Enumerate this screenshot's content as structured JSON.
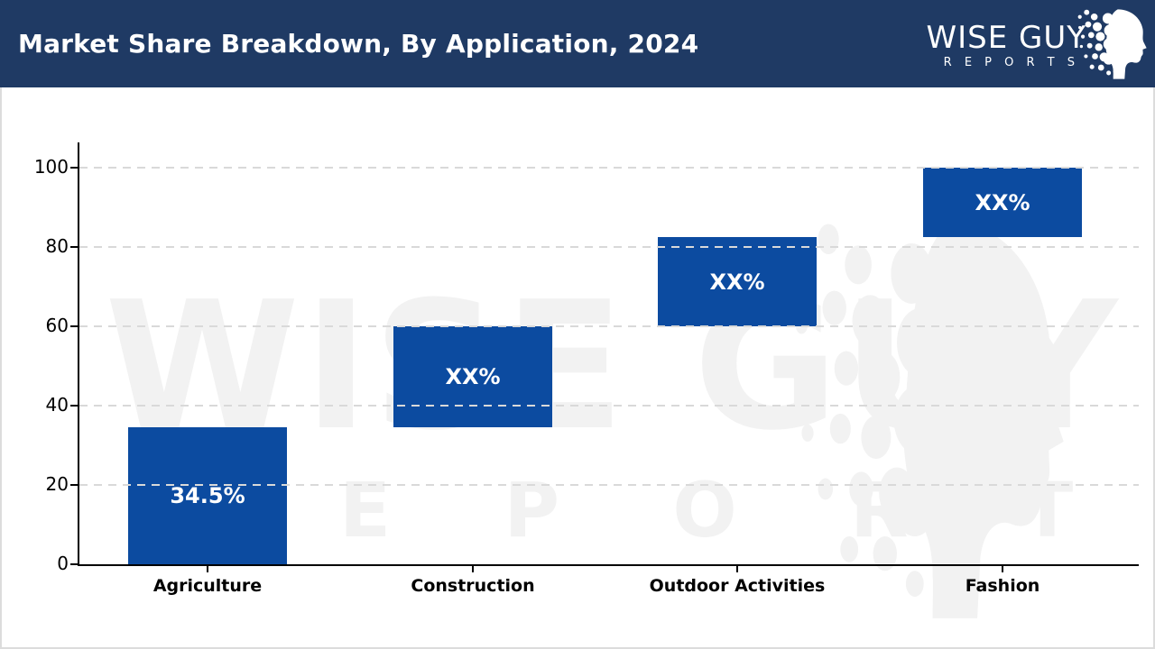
{
  "header": {
    "title": "Market Share Breakdown, By Application, 2024",
    "bg_color": "#1F3A64",
    "logo_line1": "WISE GUY",
    "logo_line2": "R E P O R T S"
  },
  "watermark": {
    "line1": "WISE GUY",
    "line2": "R E P O R T S"
  },
  "chart_data": {
    "type": "bar",
    "variant": "waterfall-stacked-percentage",
    "title": "Market Share Breakdown, By Application, 2024",
    "categories": [
      "Agriculture",
      "Construction",
      "Outdoor Activities",
      "Fashion"
    ],
    "segments": [
      {
        "category": "Agriculture",
        "start": 0,
        "end": 34.5,
        "label": "34.5%"
      },
      {
        "category": "Construction",
        "start": 34.5,
        "end": 60,
        "label": "XX%"
      },
      {
        "category": "Outdoor Activities",
        "start": 60,
        "end": 82.5,
        "label": "XX%"
      },
      {
        "category": "Fashion",
        "start": 82.5,
        "end": 100,
        "label": "XX%"
      }
    ],
    "yticks": [
      0,
      20,
      40,
      60,
      80,
      100
    ],
    "ylim": [
      0,
      106
    ],
    "xlabel": "",
    "ylabel": "",
    "legend": "none",
    "grid": {
      "horizontal": true,
      "style": "dashed",
      "color": "#d9d9d9",
      "above_bars": true
    },
    "bar_color": "#0C4BA0",
    "bar_label_color": "#ffffff",
    "axis_color": "#000000",
    "tick_label_color": "#000000"
  }
}
